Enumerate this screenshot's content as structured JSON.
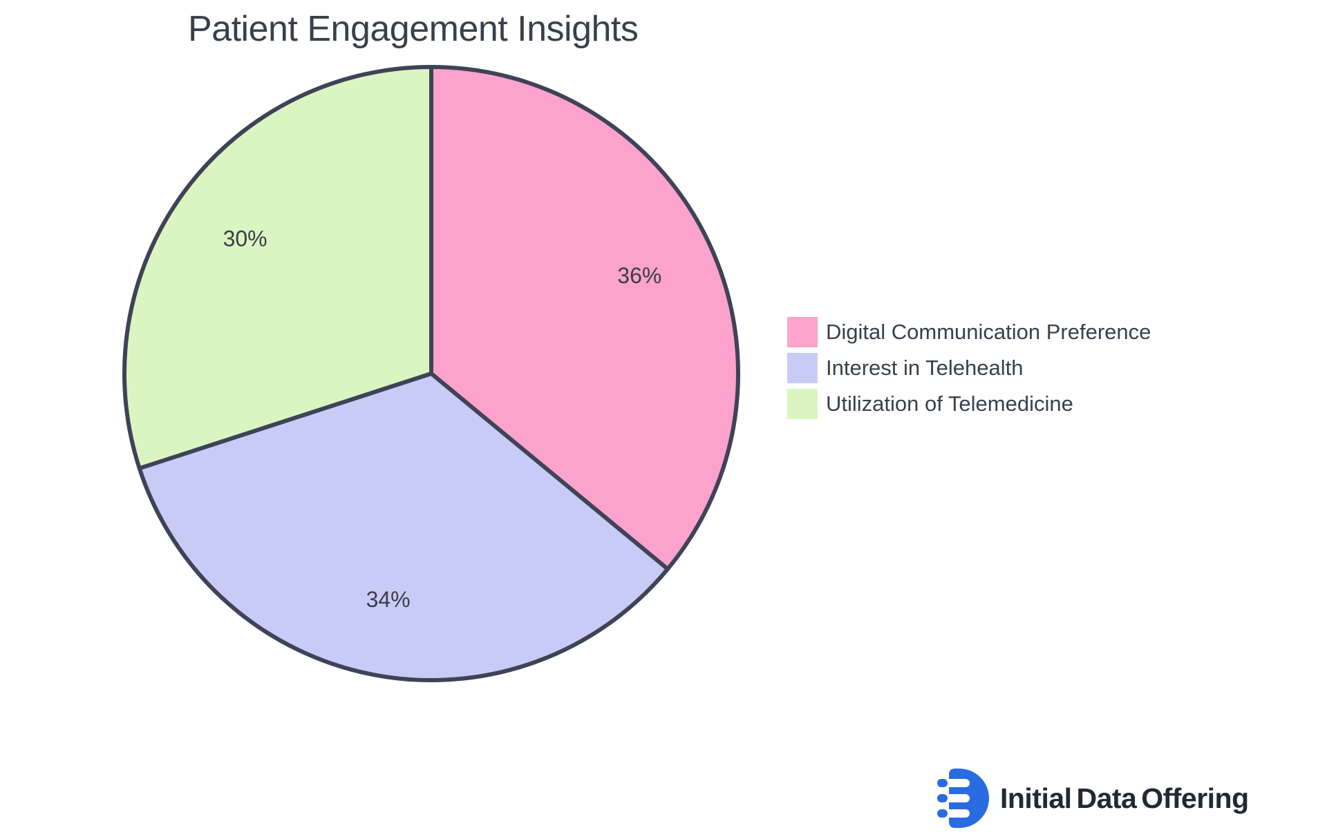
{
  "page": {
    "background": "#FFFFFF"
  },
  "chart_data": {
    "type": "pie",
    "title": "Patient Engagement Insights",
    "slices": [
      {
        "label": "Digital Communication Preference",
        "value": 36,
        "display": "36%",
        "color": "#FBA3CC"
      },
      {
        "label": "Interest in Telehealth",
        "value": 34,
        "display": "34%",
        "color": "#C9CBF7"
      },
      {
        "label": "Utilization of Telemedicine",
        "value": 30,
        "display": "30%",
        "color": "#DBF5C2"
      }
    ],
    "start_angle_deg": 0,
    "direction": "clockwise",
    "stroke_color": "#3F4357",
    "stroke_width": 6,
    "label_color": "#393E49",
    "label_font_px": 32,
    "label_radius_ratio": 0.75,
    "center": [
      624,
      541
    ],
    "radius": 444,
    "legend_position": "right",
    "grid": false
  },
  "branding": {
    "name": "Initial Data Offering",
    "icon_color": "#2A6BE2",
    "text_color": "#232832"
  }
}
